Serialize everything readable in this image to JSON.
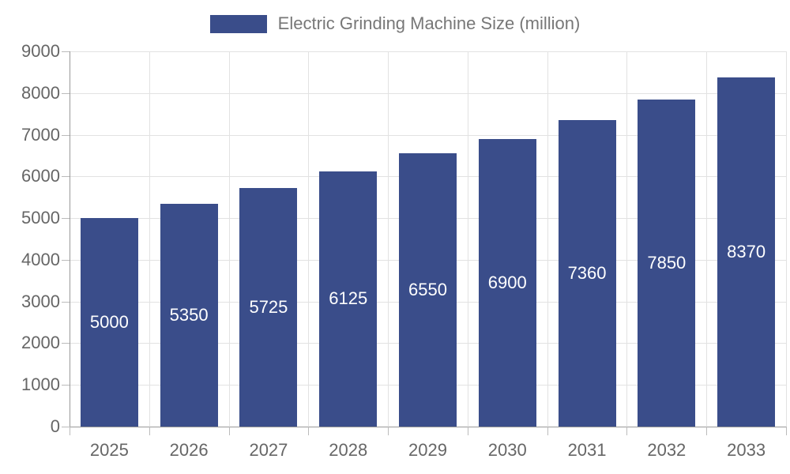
{
  "legend": {
    "label": "Electric Grinding Machine Size (million)"
  },
  "colors": {
    "bar": "#3A4D8A",
    "grid": "#E2E2E2",
    "axis_line": "#999999",
    "tick": "#BBBBBB",
    "axis_label": "#666666",
    "legend_text": "#777777",
    "value_label": "#FFFFFF",
    "background": "#FFFFFF"
  },
  "chart_data": {
    "type": "bar",
    "title": "Electric Grinding Machine Size (million)",
    "categories": [
      "2025",
      "2026",
      "2027",
      "2028",
      "2029",
      "2030",
      "2031",
      "2032",
      "2033"
    ],
    "values": [
      5000,
      5350,
      5725,
      6125,
      6550,
      6900,
      7360,
      7850,
      8370
    ],
    "series": [
      {
        "name": "Electric Grinding Machine Size (million)",
        "values": [
          5000,
          5350,
          5725,
          6125,
          6550,
          6900,
          7360,
          7850,
          8370
        ]
      }
    ],
    "xlabel": "",
    "ylabel": "",
    "ylim": [
      0,
      9000
    ],
    "yticks": [
      0,
      1000,
      2000,
      3000,
      4000,
      5000,
      6000,
      7000,
      8000,
      9000
    ],
    "grid": true,
    "legend_position": "top-center",
    "bar_label_position": "inside-center"
  }
}
